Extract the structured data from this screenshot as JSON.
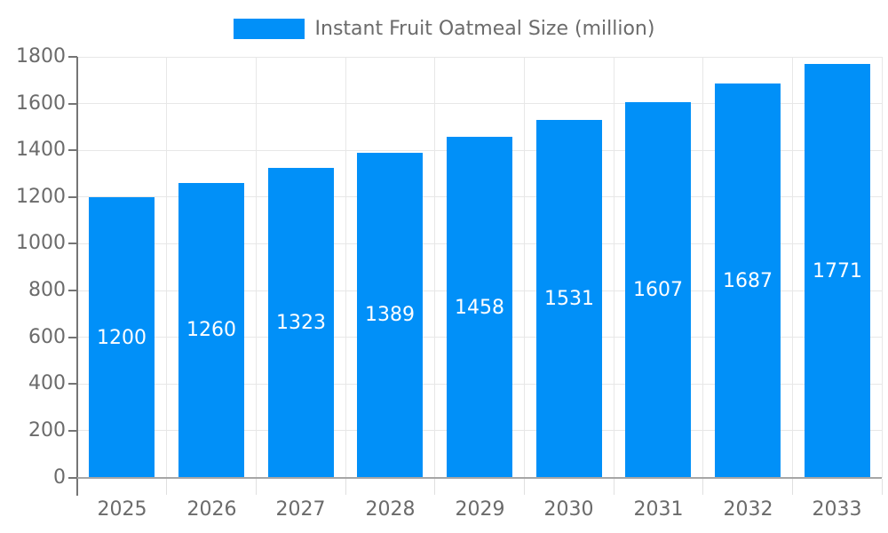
{
  "legend": {
    "title": "Instant Fruit Oatmeal Size (million)",
    "position": "top"
  },
  "colors": {
    "bar": "#0190f8",
    "grid": "#e7e7e7",
    "axis_y": "#757575",
    "axis_x": "#a6a6a6",
    "tick_minor": "#e0e0e0",
    "text": "#6b6b6b",
    "value_label": "#ffffff",
    "background": "#ffffff"
  },
  "chart_data": {
    "type": "bar",
    "title": "Instant Fruit Oatmeal Size (million)",
    "categories": [
      "2025",
      "2026",
      "2027",
      "2028",
      "2029",
      "2030",
      "2031",
      "2032",
      "2033"
    ],
    "series": [
      {
        "name": "Instant Fruit Oatmeal Size (million)",
        "values": [
          1200,
          1260,
          1323,
          1389,
          1458,
          1531,
          1607,
          1687,
          1771
        ]
      }
    ],
    "data_labels": [
      "1200",
      "1260",
      "1323",
      "1389",
      "1458",
      "1531",
      "1607",
      "1687",
      "1771"
    ],
    "xlabel": "",
    "ylabel": "",
    "ylim": [
      0,
      1800
    ],
    "ytick_step": 200,
    "yticks": [
      0,
      200,
      400,
      600,
      800,
      1000,
      1200,
      1400,
      1600,
      1800
    ],
    "grid": true,
    "legend_position": "top"
  }
}
